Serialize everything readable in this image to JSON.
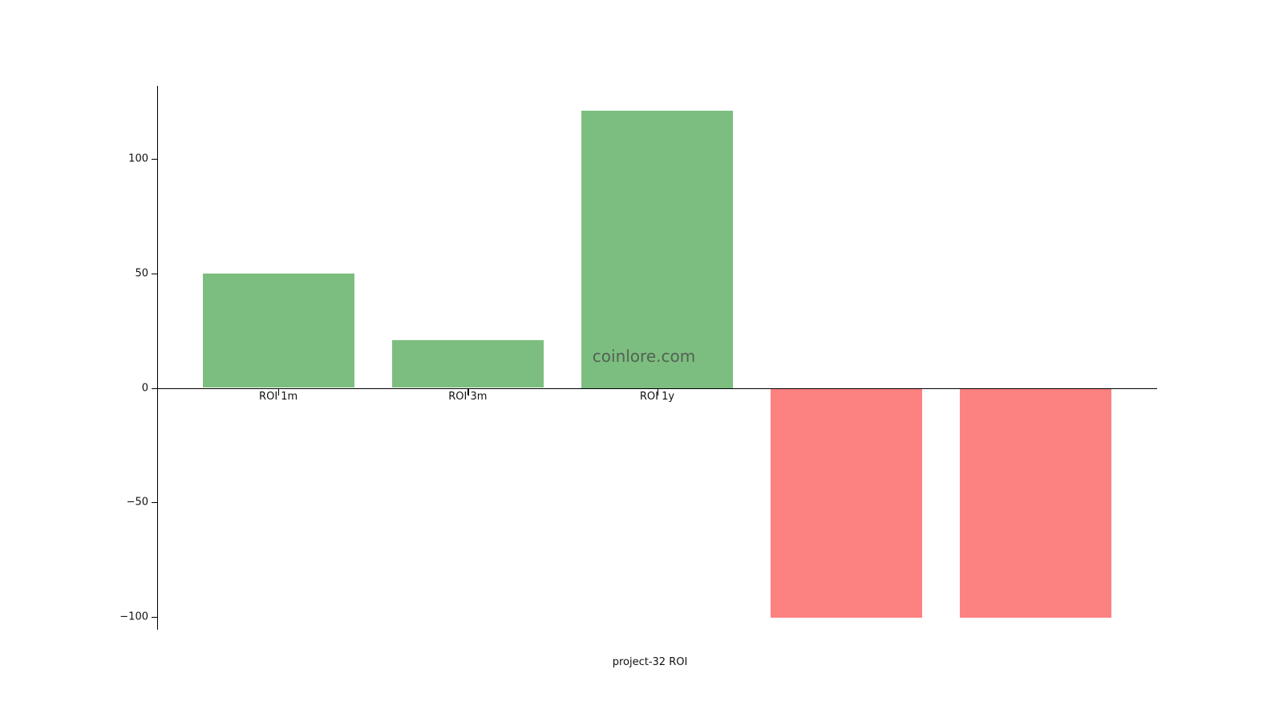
{
  "page": {
    "background": "#ffffff"
  },
  "watermark": {
    "text": "coinlore.com",
    "color": "#4a4a4a"
  },
  "chart_data": {
    "type": "bar",
    "categories": [
      "ROI 1m",
      "ROI 3m",
      "ROI 1y",
      "",
      ""
    ],
    "values": [
      50,
      21,
      121,
      -100,
      -100
    ],
    "bar_colors": [
      "#7cbe7f",
      "#7cbe7f",
      "#7cbe7f",
      "#fc8181",
      "#fc8181"
    ],
    "positive_color": "#7cbe7f",
    "negative_color": "#fc8181",
    "title": "",
    "xlabel": "project-32 ROI",
    "ylabel": "",
    "yticks": [
      -100,
      -50,
      0,
      50,
      100
    ],
    "ytick_labels": [
      "−100",
      "−50",
      "0",
      "50",
      "100"
    ],
    "ylim": [
      -111,
      132
    ],
    "xlim": [
      -0.64,
      4.64
    ],
    "bar_width": 0.8,
    "grid": false,
    "legend": null,
    "axis_color": "#000000"
  }
}
